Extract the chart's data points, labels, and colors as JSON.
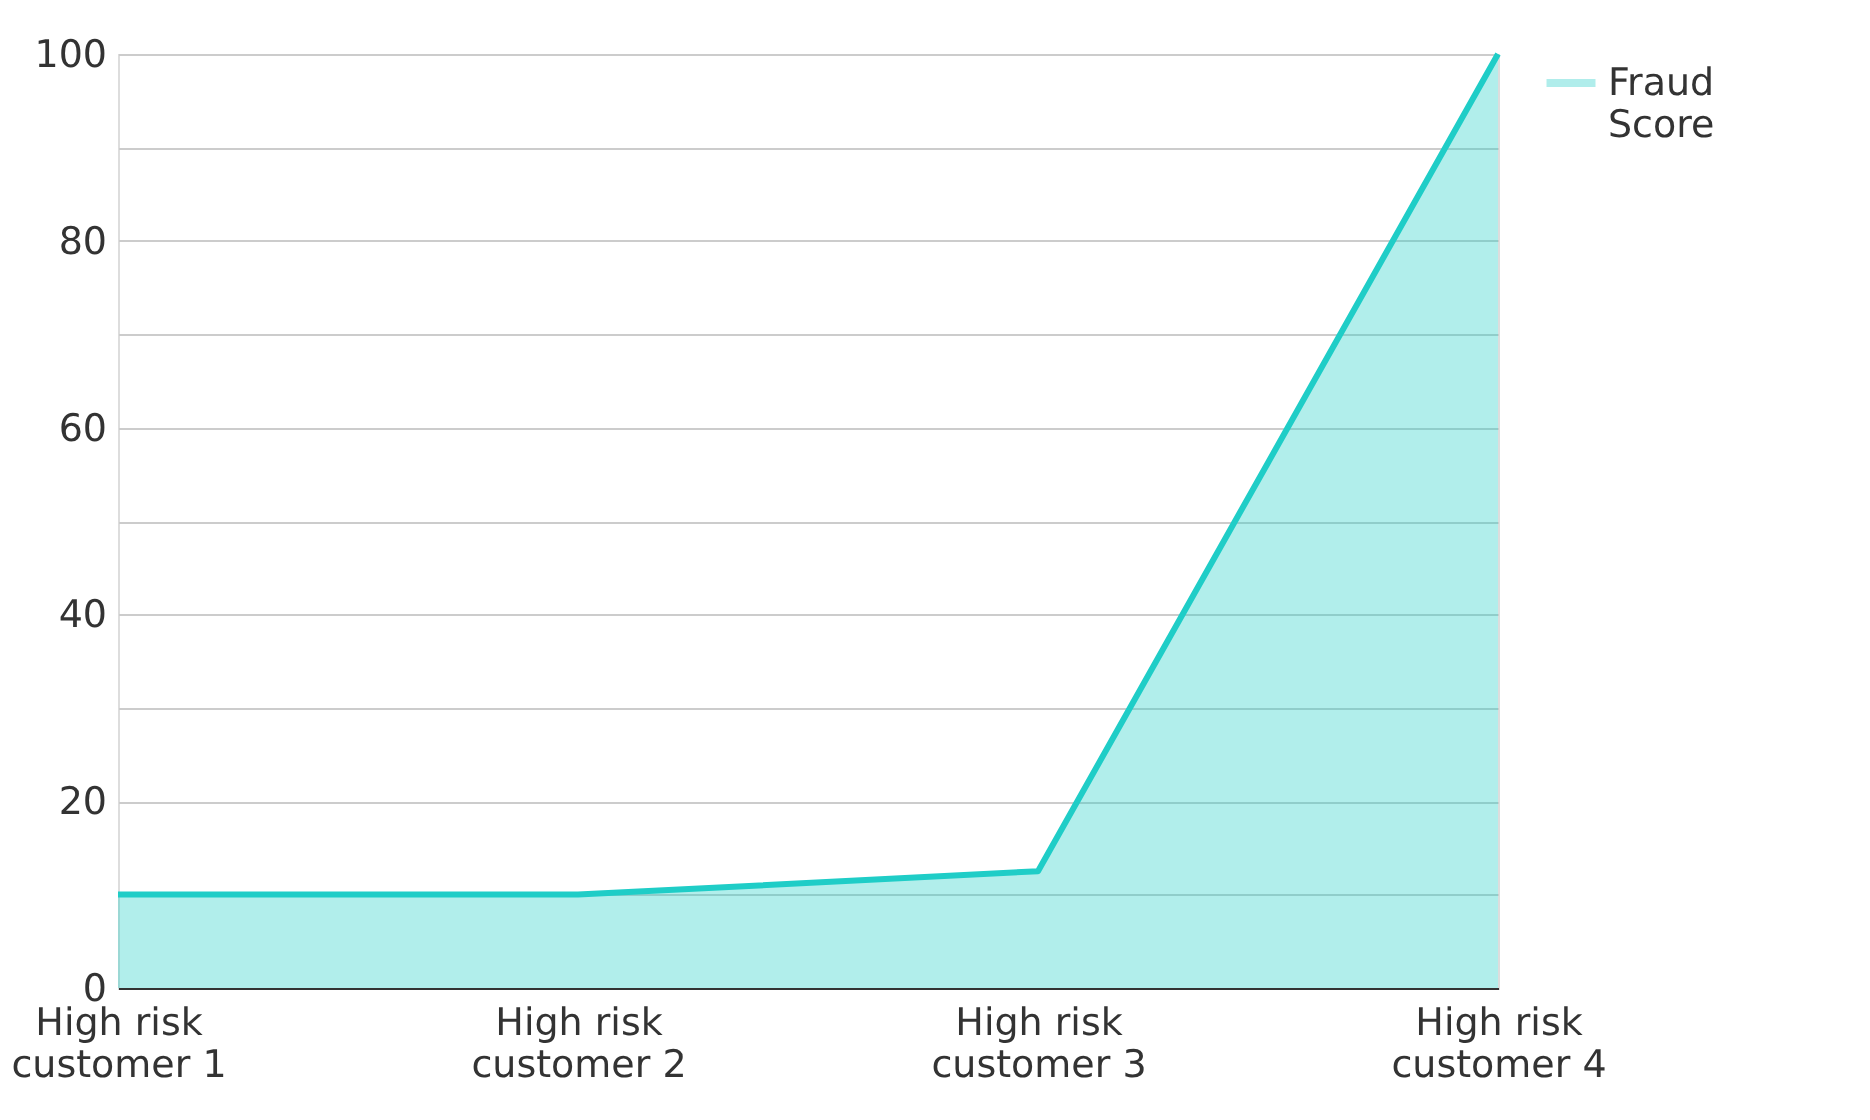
{
  "chart_data": {
    "type": "area",
    "categories": [
      "High risk customer 1",
      "High risk customer 2",
      "High risk customer 3",
      "High risk customer 4"
    ],
    "series": [
      {
        "name": "Fraud Score",
        "color": "#1fcdc7",
        "values": [
          10,
          10,
          12.5,
          100
        ]
      }
    ],
    "ylim": [
      0,
      100
    ],
    "yticks": [
      0,
      {
        "value": 10,
        "label": null
      },
      20,
      {
        "value": 30,
        "label": null
      },
      40,
      {
        "value": 50,
        "label": null
      },
      60,
      {
        "value": 70,
        "label": null
      },
      80,
      {
        "value": 90,
        "label": null
      },
      100
    ],
    "grid": "y",
    "legend": "top right",
    "line_style": "solid",
    "marker": "none"
  }
}
